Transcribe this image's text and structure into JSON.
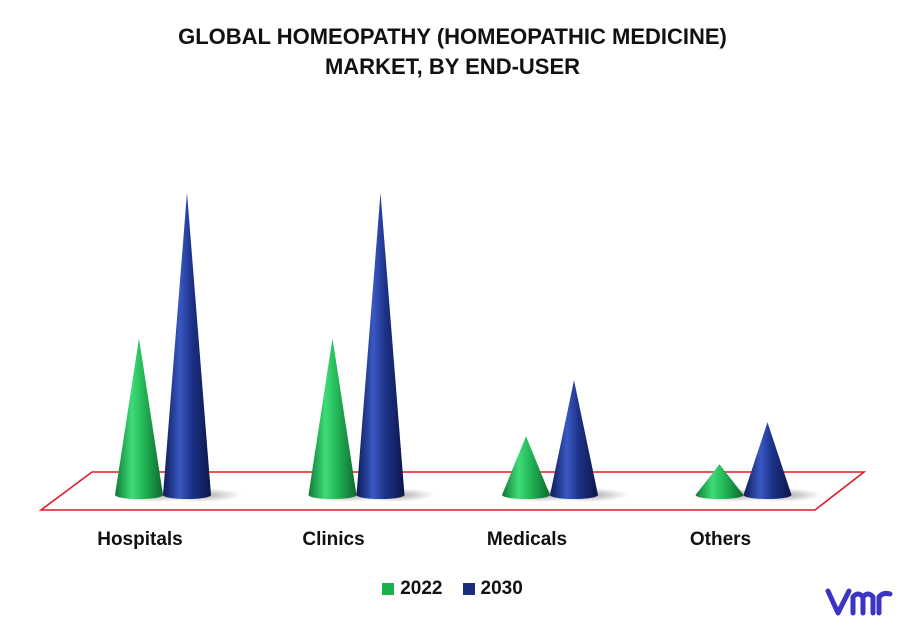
{
  "chart_data": {
    "type": "bar",
    "title": "GLOBAL HOMEOPATHY (HOMEOPATHIC MEDICINE) MARKET, BY END-USER",
    "title_lines": [
      "GLOBAL HOMEOPATHY (HOMEOPATHIC MEDICINE)",
      "MARKET, BY END-USER"
    ],
    "categories": [
      "Hospitals",
      "Clinics",
      "Medicals",
      "Others"
    ],
    "series": [
      {
        "name": "2022",
        "values": [
          5.6,
          5.6,
          2.1,
          1.1
        ],
        "color": "#1fb04e"
      },
      {
        "name": "2030",
        "values": [
          10.8,
          10.8,
          4.1,
          2.6
        ],
        "color": "#1a2f7c"
      }
    ],
    "xlabel": "",
    "ylabel": "",
    "ylim": [
      0,
      12
    ],
    "grid": false,
    "legend_position": "bottom",
    "floor_border_color": "#e01b24"
  },
  "brand": {
    "logo_icon": "vmr-logo-icon",
    "color": "#3b34c4"
  }
}
